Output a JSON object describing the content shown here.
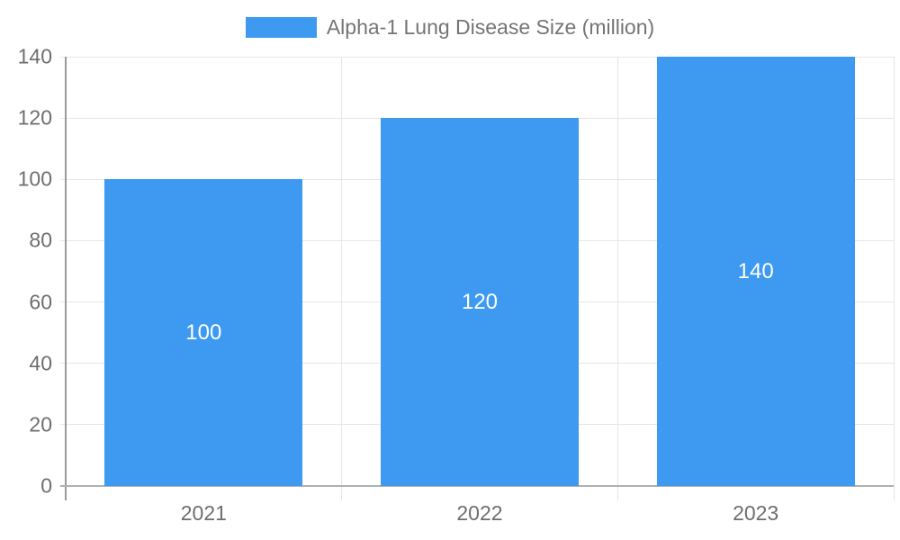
{
  "chart_data": {
    "type": "bar",
    "title": "",
    "legend": "Alpha-1 Lung Disease Size (million)",
    "legend_position": "top",
    "categories": [
      "2021",
      "2022",
      "2023"
    ],
    "series": [
      {
        "name": "Alpha-1 Lung Disease Size (million)",
        "values": [
          100,
          120,
          140
        ]
      }
    ],
    "bar_value_labels": [
      "100",
      "120",
      "140"
    ],
    "xlabel": "",
    "ylabel": "",
    "ylim": [
      0,
      140
    ],
    "y_ticks": [
      0,
      20,
      40,
      60,
      80,
      100,
      120,
      140
    ],
    "grid": "on",
    "colors": {
      "bar": "#3d9af0",
      "bar_value_label": "#ffffff",
      "legend_text": "#757575",
      "tick_text": "#6e6e6e",
      "gridline": "#e6e6e6",
      "axis_line": "#9a9a9a",
      "baseline": "#b0b0b0",
      "background": "#ffffff"
    }
  }
}
